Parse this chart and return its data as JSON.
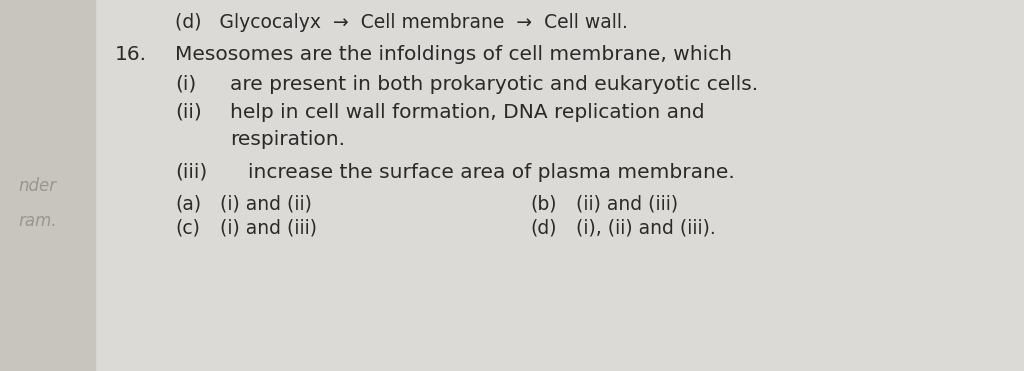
{
  "bg_main": "#dcdad6",
  "bg_left_strip": "#c8c5bf",
  "bg_sidebar_text": "#9a9590",
  "text_color": "#2a2a2a",
  "sidebar_labels": [
    "nder",
    "ram."
  ],
  "line0": "(d)   Glycocalyx  →  Cell membrane  →  Cell wall.",
  "line1_num": "16.",
  "line1_text": "Mesosomes are the infoldings of cell membrane, which",
  "line2_label": "(i)",
  "line2_text": "are present in both prokaryotic and eukaryotic cells.",
  "line3_label": "(ii)",
  "line3_text": "help in cell wall formation, DNA replication and",
  "line4_text": "respiration.",
  "line5_label": "(iii)",
  "line5_text": "increase the surface area of plasma membrane.",
  "opta_label": "(a)",
  "opta_text": "(i) and (ii)",
  "optb_label": "(b)",
  "optb_text": "(ii) and (iii)",
  "optc_label": "(c)",
  "optc_text": "(i) and (iii)",
  "optd_label": "(d)",
  "optd_text": "(i), (ii) and (iii).",
  "fs": 14.5,
  "fs_small": 13.5
}
